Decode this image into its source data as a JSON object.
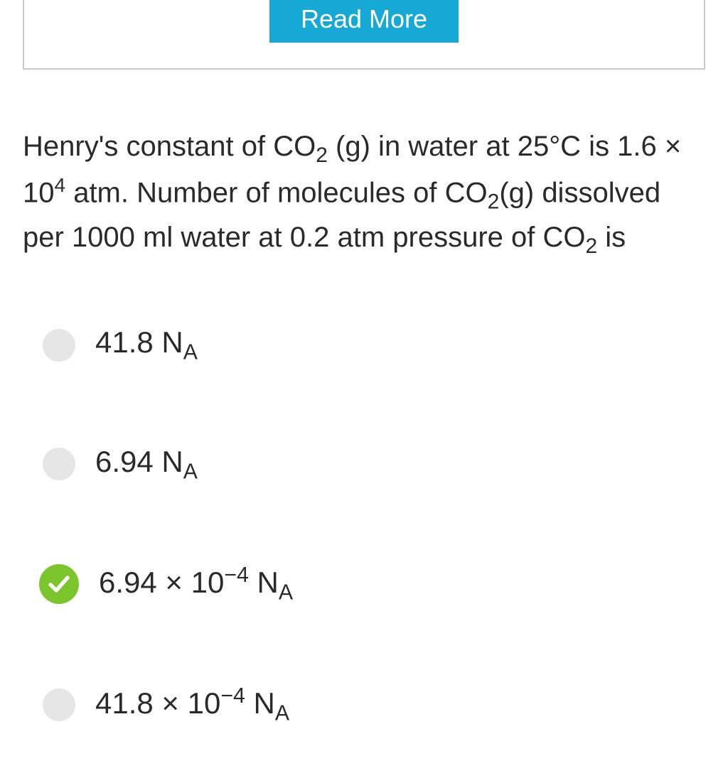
{
  "readMore": {
    "label": "Read More",
    "bg": "#17a9d6",
    "fg": "#ffffff"
  },
  "question": {
    "html": "Henry's constant of CO<sub>2</sub> (g) in water at 25°C is 1.6 × 10<sup>4</sup> atm. Number of molecules of CO<sub>2</sub>(g) dissolved per 1000 ml water at 0.2 atm pressure of CO<sub>2</sub> is"
  },
  "options": [
    {
      "html": "41.8 N<sub>A</sub>",
      "correct": false
    },
    {
      "html": "6.94 N<sub>A</sub>",
      "correct": false
    },
    {
      "html": "6.94 × 10<sup>−4</sup> N<sub>A</sub>",
      "correct": true
    },
    {
      "html": "41.8 × 10<sup>−4</sup> N<sub>A</sub>",
      "correct": false
    }
  ],
  "colors": {
    "frameBorder": "#c8c8c8",
    "text": "#2a2a2a",
    "radioEmpty": "#e6e6e6",
    "correctGreen": "#7bc62d",
    "correctCheck": "#ffffff",
    "background": "#ffffff"
  }
}
